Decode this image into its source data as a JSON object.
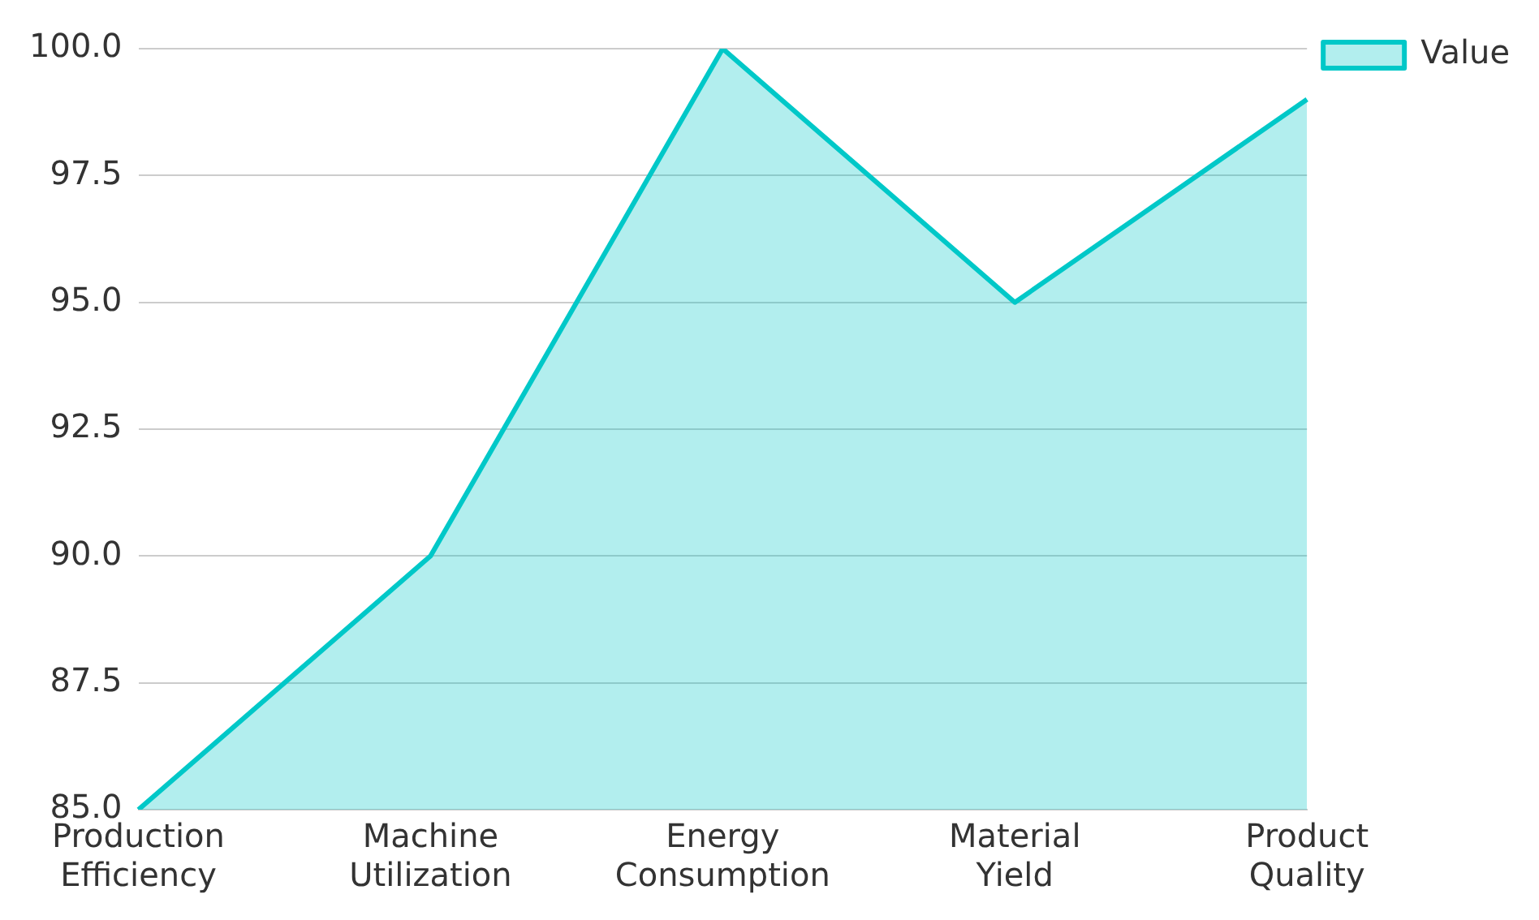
{
  "chart_data": {
    "type": "area",
    "categories": [
      "Production Efficiency",
      "Machine Utilization",
      "Energy Consumption",
      "Material Yield",
      "Product Quality"
    ],
    "series": [
      {
        "name": "Value",
        "color": "#00c8c8",
        "values": [
          85,
          90,
          100,
          95,
          99
        ]
      }
    ],
    "ylim": [
      85,
      100
    ],
    "yticks": [
      {
        "value": 85,
        "label": "85.0"
      },
      {
        "value": 87.5,
        "label": "87.5"
      },
      {
        "value": 90,
        "label": "90.0"
      },
      {
        "value": 92.5,
        "label": "92.5"
      },
      {
        "value": 95,
        "label": "95.0"
      },
      {
        "value": 97.5,
        "label": "97.5"
      },
      {
        "value": 100,
        "label": "100.0"
      }
    ],
    "grid": "y",
    "legend": "top right",
    "marker": "none",
    "line_style": "solid"
  }
}
